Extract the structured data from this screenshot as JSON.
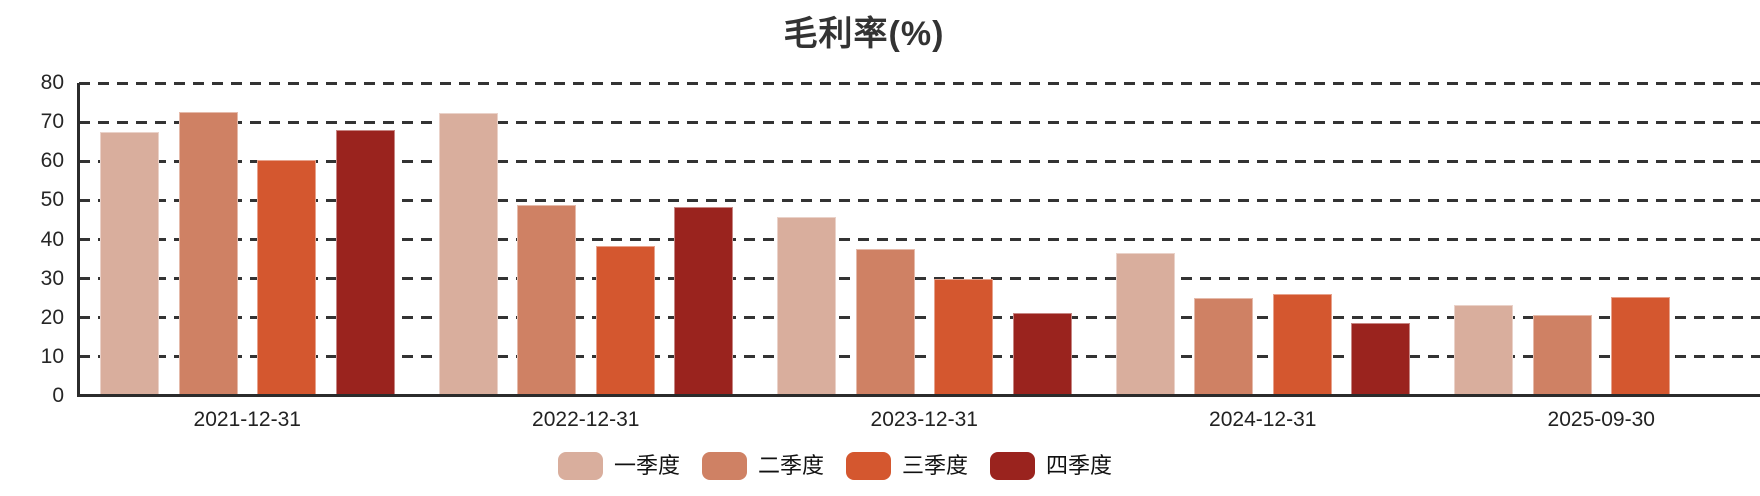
{
  "title": "毛利率(%)",
  "chart_data": {
    "type": "bar",
    "title": "毛利率(%)",
    "categories": [
      "2021-12-31",
      "2022-12-31",
      "2023-12-31",
      "2024-12-31",
      "2025-09-30"
    ],
    "series": [
      {
        "name": "一季度",
        "color": "#D9AE9D",
        "values": [
          67.5,
          72.4,
          45.8,
          36.5,
          23.2
        ]
      },
      {
        "name": "二季度",
        "color": "#CF8164",
        "values": [
          72.5,
          48.7,
          37.6,
          25.0,
          20.8
        ]
      },
      {
        "name": "三季度",
        "color": "#D4572F",
        "values": [
          60.2,
          38.4,
          29.9,
          26.1,
          25.2
        ]
      },
      {
        "name": "四季度",
        "color": "#9A231E",
        "values": [
          68.1,
          48.4,
          21.1,
          18.6,
          null
        ]
      }
    ],
    "xlabel": "",
    "ylabel": "",
    "ylim": [
      0,
      80
    ],
    "y_ticks": [
      0,
      10,
      20,
      30,
      40,
      50,
      60,
      70,
      80
    ],
    "grid": "horizontal-dashed",
    "legend_position": "bottom",
    "axis_color": "#2b2b2b",
    "grid_color": "#333333",
    "text_color": "#222222",
    "title_color": "#333333"
  }
}
